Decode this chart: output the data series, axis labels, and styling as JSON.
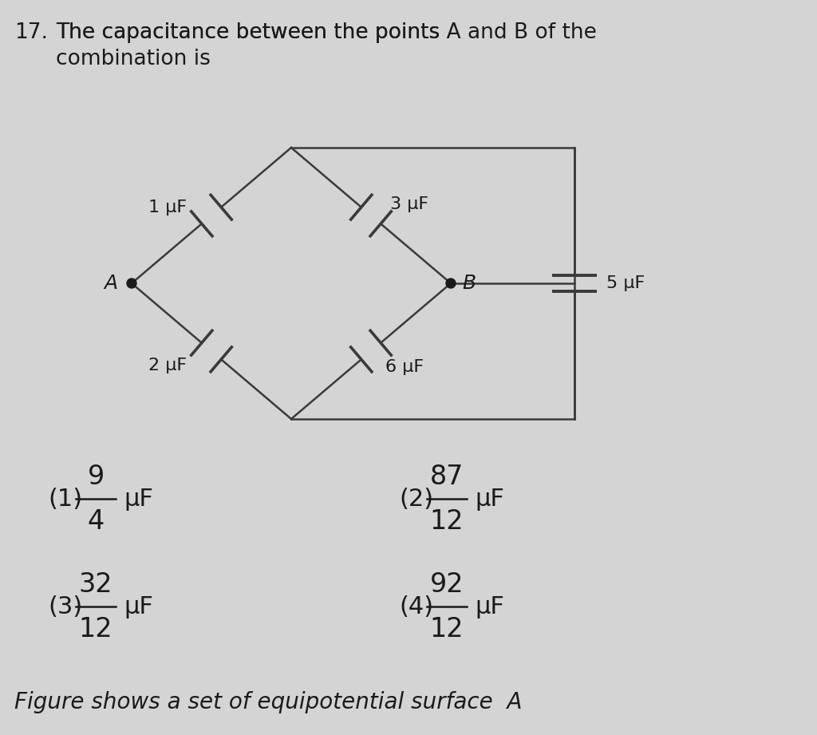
{
  "bg_color": "#d4d4d4",
  "title_number": "17.",
  "title_text": "The capacitance between the points ",
  "title_text_italic": "A",
  "title_text2": " and ",
  "title_text_italic2": "B",
  "title_text3": " of the",
  "title_line2": "combination is",
  "title_fontsize": 19,
  "circuit": {
    "cap1_label": "1 μF",
    "cap2_label": "2 μF",
    "cap3_label": "3 μF",
    "cap6_label": "6 μF",
    "cap5_label": "5 μF"
  },
  "options": [
    {
      "num": "(1)",
      "numer": "9",
      "denom": "4",
      "unit": "μF"
    },
    {
      "num": "(2)",
      "numer": "87",
      "denom": "12",
      "unit": "μF"
    },
    {
      "num": "(3)",
      "numer": "32",
      "denom": "12",
      "unit": "μF"
    },
    {
      "num": "(4)",
      "numer": "92",
      "denom": "12",
      "unit": "μF"
    }
  ],
  "bottom_text": "Figure shows a set of equipotential surface  A",
  "line_color": "#3a3a3a",
  "dot_color": "#1a1a1a",
  "text_color": "#1a1a1a",
  "font_family": "DejaVu Sans"
}
